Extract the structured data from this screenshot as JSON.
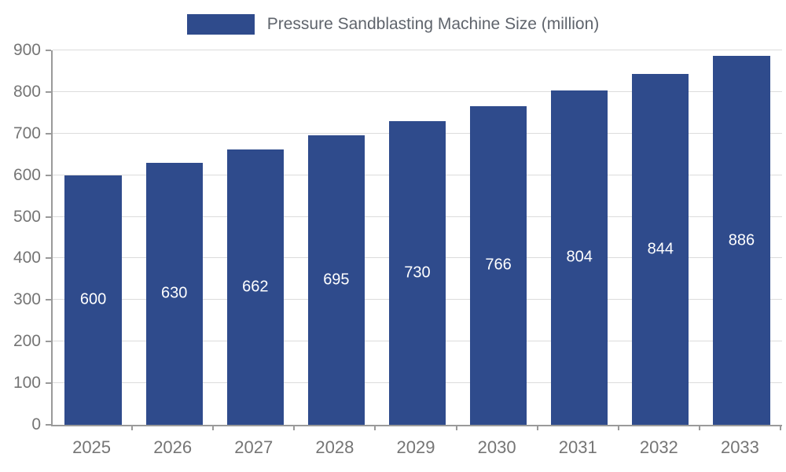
{
  "chart_data": {
    "type": "bar",
    "title": "Pressure Sandblasting Machine Size (million)",
    "categories": [
      "2025",
      "2026",
      "2027",
      "2028",
      "2029",
      "2030",
      "2031",
      "2032",
      "2033"
    ],
    "values": [
      600,
      630,
      662,
      695,
      730,
      766,
      804,
      844,
      886
    ],
    "xlabel": "",
    "ylabel": "",
    "ylim": [
      0,
      900
    ],
    "ytick_step": 100,
    "yticks": [
      0,
      100,
      200,
      300,
      400,
      500,
      600,
      700,
      800,
      900
    ],
    "grid": true,
    "legend_position": "top",
    "colors": {
      "bar": "#2F4B8C",
      "value_label": "#ffffff",
      "axis_text": "#757575",
      "legend_text": "#5f646c",
      "gridline": "#dcdcdc",
      "axis_line": "#9a9a9a",
      "background": "#ffffff"
    }
  }
}
